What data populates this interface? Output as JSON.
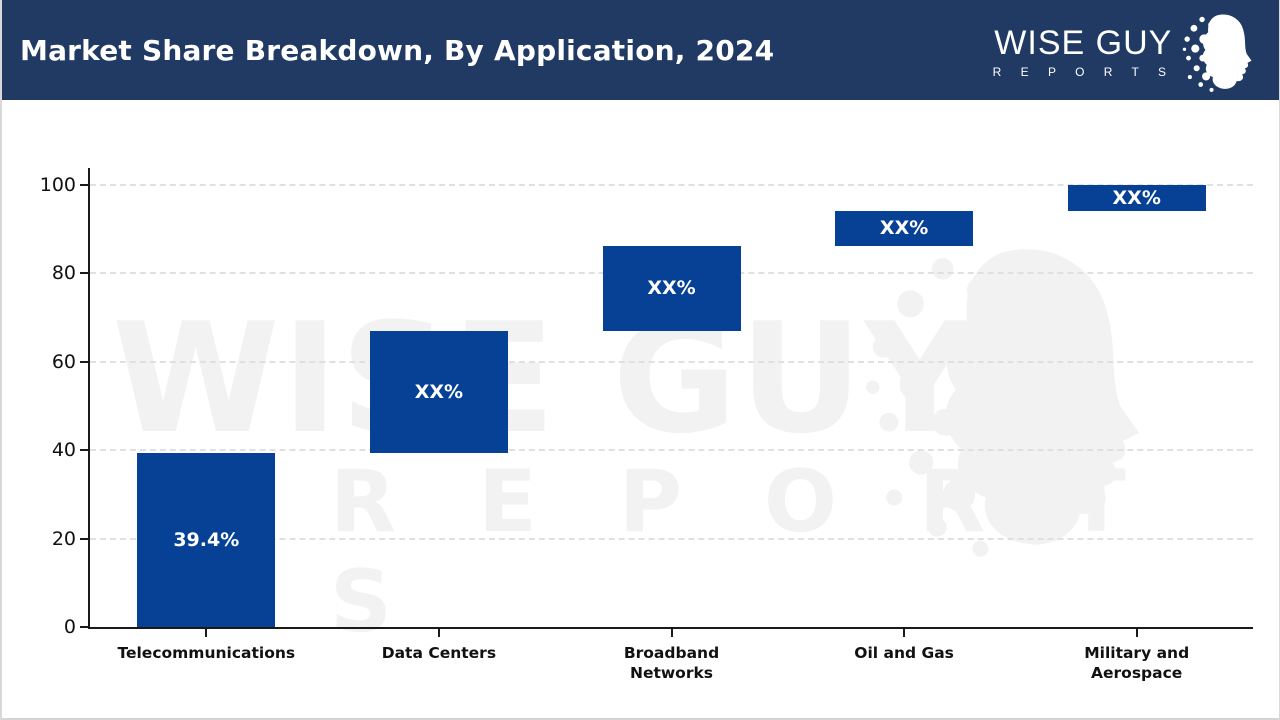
{
  "header": {
    "title": "Market Share Breakdown, By Application, 2024",
    "brand": {
      "line1": "WISE GUY",
      "line2": "R E P O R T S"
    }
  },
  "watermark": {
    "line1": "WISE GUY",
    "line2": "R E P O R T S"
  },
  "colors": {
    "header_bg": "#203a64",
    "bar": "#064196",
    "bar_label": "#ffffff",
    "gridline": "#e0e0e0",
    "axis": "#1a1a1a",
    "watermark": "#f2f2f2"
  },
  "chart_data": {
    "type": "bar",
    "subtype": "waterfall",
    "title": "Market Share Breakdown, By Application, 2024",
    "categories": [
      "Telecommunications",
      "Data Centers",
      "Broadband Networks",
      "Oil and Gas",
      "Military and Aerospace"
    ],
    "category_label_lines": [
      [
        "Telecommunications"
      ],
      [
        "Data Centers"
      ],
      [
        "Broadband Networks"
      ],
      [
        "Oil and Gas"
      ],
      [
        "Military and",
        "Aerospace"
      ]
    ],
    "segments": [
      {
        "category": "Telecommunications",
        "start": 0,
        "end": 39.4,
        "label": "39.4%"
      },
      {
        "category": "Data Centers",
        "start": 39.4,
        "end": 67.0,
        "label": "XX%"
      },
      {
        "category": "Broadband Networks",
        "start": 67.0,
        "end": 86.3,
        "label": "XX%"
      },
      {
        "category": "Oil and Gas",
        "start": 86.3,
        "end": 94.1,
        "label": "XX%"
      },
      {
        "category": "Military and Aerospace",
        "start": 94.1,
        "end": 100.0,
        "label": "XX%"
      }
    ],
    "xlabel": "",
    "ylabel": "",
    "ylim": [
      0,
      100
    ],
    "yticks": [
      0,
      20,
      40,
      60,
      80,
      100
    ],
    "grid": {
      "axis": "y",
      "style": "dashed"
    },
    "legend": "none"
  }
}
